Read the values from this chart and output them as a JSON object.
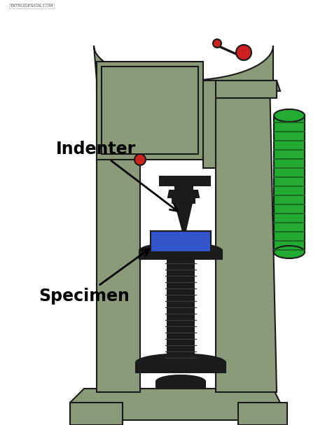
{
  "bg_color": "#ffffff",
  "machine_color": "#8b9b7a",
  "outline_color": "#1a1a1a",
  "black_color": "#1c1c1c",
  "red_color": "#cc2222",
  "green_color": "#22aa33",
  "green_dark": "#1a6622",
  "blue_color": "#3355cc",
  "blue_light": "#5577ff",
  "label_indenter": "Indenter",
  "label_specimen": "Specimen",
  "watermark": "EXTRUDESIGN.COM",
  "lw": 1.5
}
